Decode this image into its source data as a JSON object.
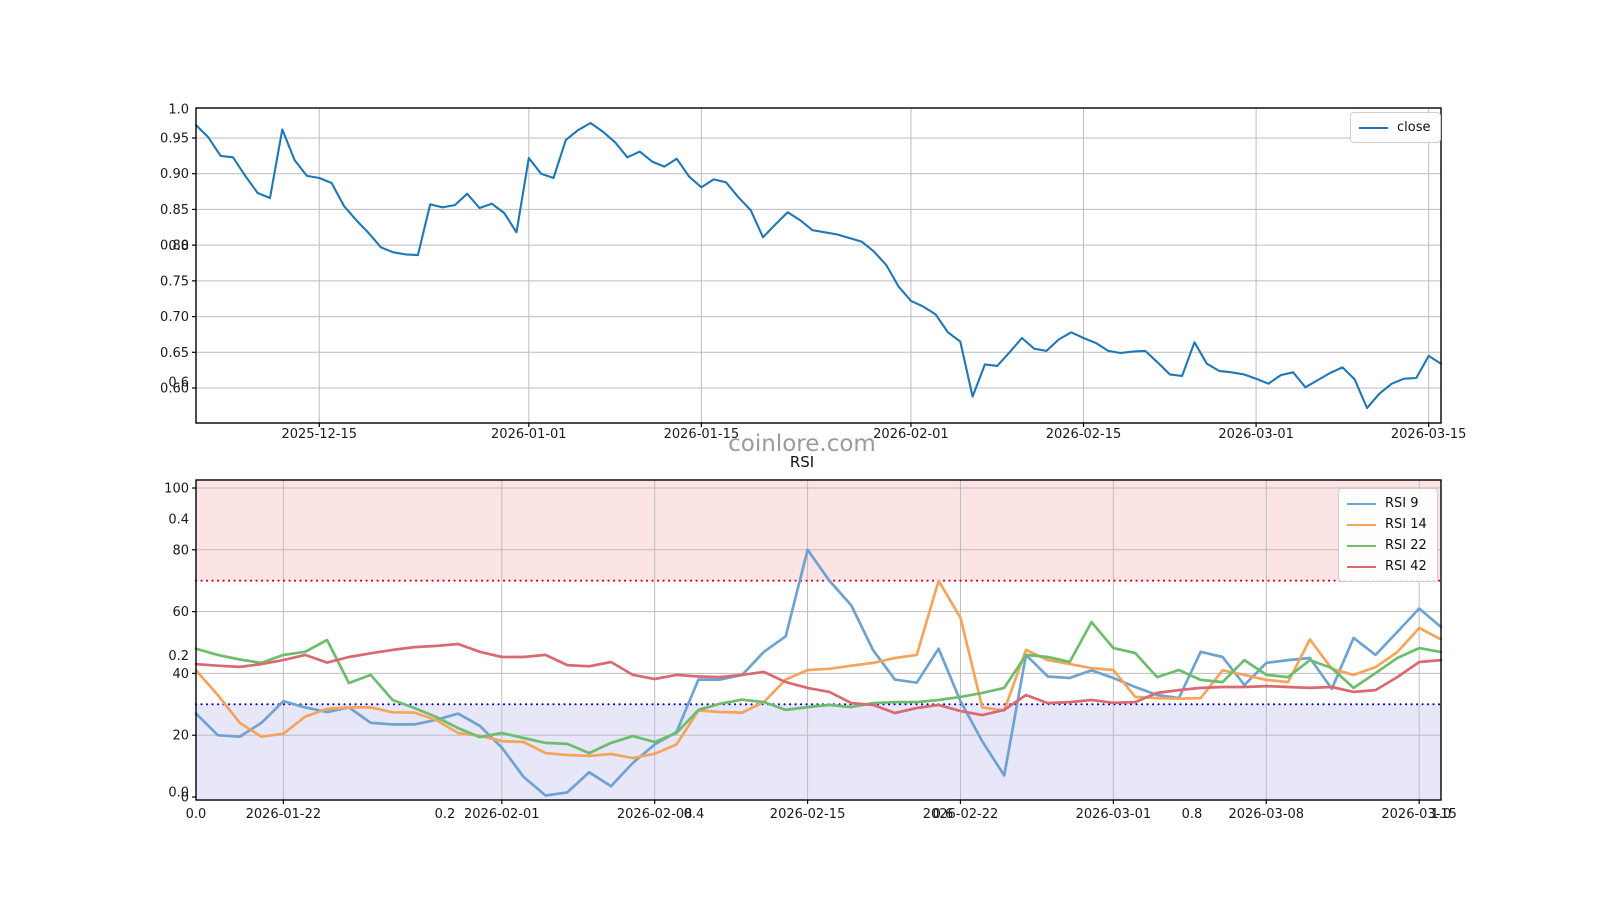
{
  "watermark": "coinlore.com",
  "rsi_title": "RSI",
  "colors": {
    "close": "#1f77b4",
    "rsi9": "#6FA3CF",
    "rsi14": "#F4A55C",
    "rsi22": "#6DBD6D",
    "rsi42": "#D96A71",
    "overbought_line": "#CC0022",
    "oversold_line": "#0000CC",
    "overbought_band": "rgba(235,80,90,0.16)",
    "oversold_band": "rgba(90,85,220,0.14)",
    "grid": "#bdbdbd",
    "frame": "#000000",
    "watermark_gray": "#9b9b9b"
  },
  "overlay_axis": {
    "x_tick_labels": [
      "0.0",
      "0.2",
      "0.4",
      "0.6",
      "0.8",
      "1.0"
    ],
    "y_tick_labels": [
      "1.0",
      "0.8",
      "0.6",
      "0.4",
      "0.2",
      "0.0"
    ]
  },
  "chart_data": [
    {
      "type": "line",
      "title": "",
      "legend_position": "upper right",
      "grid": true,
      "x_range": [
        "2025-12-05",
        "2026-03-16"
      ],
      "x_tick_labels": [
        "2025-12-15",
        "2026-01-01",
        "2026-01-15",
        "2026-02-01",
        "2026-02-15",
        "2026-03-01",
        "2026-03-15"
      ],
      "x_tick_day_index": [
        10,
        27,
        41,
        58,
        72,
        86,
        100
      ],
      "y_tick_labels": [
        "0.95",
        "0.90",
        "0.85",
        "0.80",
        "0.75",
        "0.70",
        "0.65",
        "0.60"
      ],
      "y_tick_values": [
        0.95,
        0.9,
        0.85,
        0.8,
        0.75,
        0.7,
        0.65,
        0.6
      ],
      "ylim": [
        0.551,
        0.992
      ],
      "series": [
        {
          "name": "close",
          "color": "#1f77b4",
          "values": [
            0.968,
            0.951,
            0.925,
            0.923,
            0.897,
            0.873,
            0.866,
            0.962,
            0.919,
            0.897,
            0.894,
            0.887,
            0.855,
            0.835,
            0.817,
            0.797,
            0.79,
            0.787,
            0.786,
            0.857,
            0.853,
            0.856,
            0.872,
            0.852,
            0.858,
            0.845,
            0.818,
            0.922,
            0.9,
            0.894,
            0.947,
            0.961,
            0.971,
            0.959,
            0.944,
            0.923,
            0.931,
            0.917,
            0.91,
            0.921,
            0.896,
            0.881,
            0.892,
            0.888,
            0.867,
            0.849,
            0.811,
            0.829,
            0.846,
            0.835,
            0.821,
            0.818,
            0.815,
            0.81,
            0.805,
            0.791,
            0.772,
            0.742,
            0.722,
            0.714,
            0.703,
            0.678,
            0.665,
            0.588,
            0.633,
            0.631,
            0.65,
            0.67,
            0.655,
            0.652,
            0.668,
            0.678,
            0.67,
            0.663,
            0.652,
            0.649,
            0.651,
            0.652,
            0.636,
            0.619,
            0.617,
            0.664,
            0.634,
            0.624,
            0.622,
            0.619,
            0.613,
            0.606,
            0.618,
            0.622,
            0.601,
            0.611,
            0.621,
            0.629,
            0.612,
            0.572,
            0.592,
            0.606,
            0.613,
            0.614,
            0.645,
            0.634
          ]
        }
      ]
    },
    {
      "type": "line",
      "title": "RSI",
      "legend_position": "upper right",
      "grid": true,
      "x_range": [
        "2026-01-18",
        "2026-03-16"
      ],
      "x_tick_labels": [
        "2026-01-22",
        "2026-02-01",
        "2026-02-08",
        "2026-02-15",
        "2026-02-22",
        "2026-03-01",
        "2026-03-08",
        "2026-03-15"
      ],
      "x_tick_day_index": [
        4,
        14,
        21,
        28,
        35,
        42,
        49,
        56
      ],
      "y_tick_labels": [
        "100",
        "80",
        "60",
        "40",
        "20",
        "0"
      ],
      "y_tick_values": [
        100,
        80,
        60,
        40,
        20,
        0
      ],
      "ylim": [
        -1,
        102.6
      ],
      "overbought_threshold": 70,
      "oversold_threshold": 30,
      "series": [
        {
          "name": "RSI 9",
          "color": "#6FA3CF",
          "values": [
            27,
            20,
            19.5,
            24,
            31,
            29,
            27.5,
            29,
            24,
            23.5,
            23.5,
            25,
            27,
            23,
            16,
            6.5,
            0.5,
            1.5,
            8,
            3.5,
            11,
            17,
            21,
            38,
            38,
            39.5,
            47,
            52,
            80,
            70,
            62,
            47.5,
            38,
            37,
            48,
            31,
            18,
            7,
            46,
            39,
            38.5,
            41,
            38.5,
            35.6,
            33,
            32,
            47,
            45.3,
            36.2,
            43.4,
            44.3,
            45,
            35,
            51.5,
            46,
            53.4,
            61,
            55
          ]
        },
        {
          "name": "RSI 14",
          "color": "#F4A55C",
          "values": [
            41,
            33,
            24,
            19.5,
            20.5,
            26,
            28.5,
            29,
            29,
            27.4,
            27.3,
            24.9,
            20.7,
            19.8,
            18.1,
            17.8,
            14.2,
            13.6,
            13.3,
            13.9,
            12.6,
            14,
            17,
            28,
            27.5,
            27.3,
            30.7,
            38,
            41.1,
            41.5,
            42.5,
            43.4,
            45,
            46,
            70,
            58,
            29,
            28,
            47.6,
            44.3,
            43,
            41.7,
            41.1,
            32.4,
            32,
            31.8,
            32,
            41,
            39.5,
            37.9,
            37.2,
            51,
            41.5,
            39.5,
            42,
            46.9,
            54.7,
            51
          ]
        },
        {
          "name": "RSI 22",
          "color": "#6DBD6D",
          "values": [
            48,
            46,
            44.5,
            43.4,
            46,
            47,
            50.8,
            36.9,
            39.5,
            31.4,
            28.8,
            25.9,
            22.3,
            19.4,
            20.7,
            19.1,
            17.5,
            17.2,
            14.2,
            17.5,
            19.7,
            17.8,
            20.7,
            28.2,
            30.2,
            31.5,
            30.7,
            28.2,
            29.1,
            29.8,
            29.1,
            30.4,
            30.7,
            30.7,
            31.4,
            32.4,
            33.7,
            35.3,
            46,
            45.3,
            43.7,
            56.6,
            48.2,
            46.6,
            38.8,
            41.1,
            37.9,
            37.2,
            44.3,
            39.5,
            38.8,
            44.3,
            41.7,
            35.3,
            40.1,
            45,
            48.2,
            46.9
          ]
        },
        {
          "name": "RSI 42",
          "color": "#D96A71",
          "values": [
            43,
            42.5,
            42.1,
            43,
            44.3,
            46,
            43.5,
            45.3,
            46.5,
            47.6,
            48.5,
            48.9,
            49.5,
            47,
            45.3,
            45.3,
            46,
            42.7,
            42.3,
            43.7,
            39.5,
            38.2,
            39.5,
            39,
            38.8,
            39.5,
            40.5,
            37.2,
            35.3,
            34,
            30.4,
            29.8,
            27.2,
            28.8,
            29.8,
            27.8,
            26.5,
            28.2,
            33,
            30.4,
            30.7,
            31.4,
            30.5,
            30.7,
            33.7,
            34.6,
            35.3,
            35.6,
            35.6,
            35.9,
            35.6,
            35.3,
            35.6,
            34,
            34.6,
            38.8,
            43.7,
            44.3
          ]
        }
      ]
    }
  ]
}
